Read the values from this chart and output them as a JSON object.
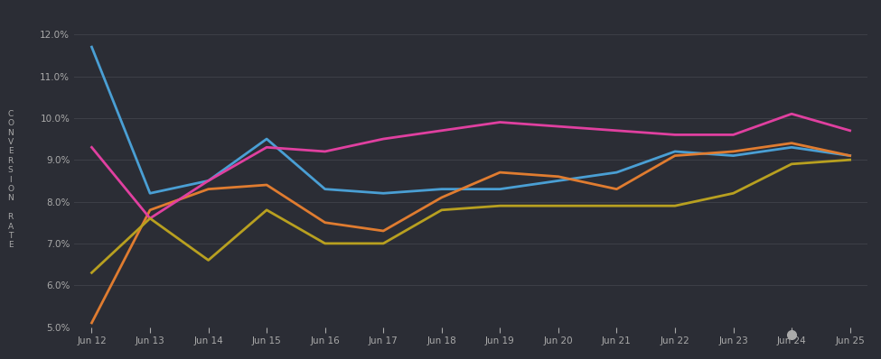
{
  "dates": [
    "Jun 12",
    "Jun 13",
    "Jun 14",
    "Jun 15",
    "Jun 16",
    "Jun 17",
    "Jun 18",
    "Jun 19",
    "Jun 20",
    "Jun 21",
    "Jun 22",
    "Jun 23",
    "Jun 24",
    "Jun 25"
  ],
  "blue": [
    11.7,
    8.2,
    8.5,
    9.5,
    8.3,
    8.2,
    8.3,
    8.3,
    8.5,
    8.7,
    9.2,
    9.1,
    9.3,
    9.1
  ],
  "orange": [
    5.1,
    7.8,
    8.3,
    8.4,
    7.5,
    7.3,
    8.1,
    8.7,
    8.6,
    8.3,
    9.1,
    9.2,
    9.4,
    9.1
  ],
  "pink": [
    9.3,
    7.6,
    8.5,
    9.3,
    9.2,
    9.5,
    9.7,
    9.9,
    9.8,
    9.7,
    9.6,
    9.6,
    10.1,
    9.7
  ],
  "darkyellow": [
    6.3,
    7.6,
    6.6,
    7.8,
    7.0,
    7.0,
    7.8,
    7.9,
    7.9,
    7.9,
    7.9,
    8.2,
    8.9,
    9.0
  ],
  "bg_color": "#2b2d35",
  "grid_color": "#3d3f47",
  "text_color": "#aaaaaa",
  "line_colors": {
    "blue": "#4a9fd4",
    "orange": "#e07c30",
    "pink": "#e040a0",
    "darkyellow": "#b8a020"
  },
  "ylabel": "CONVERSION RATE",
  "ylim": [
    5.0,
    12.5
  ],
  "yticks": [
    5.0,
    6.0,
    7.0,
    8.0,
    9.0,
    10.0,
    11.0,
    12.0
  ],
  "line_width": 2.0
}
